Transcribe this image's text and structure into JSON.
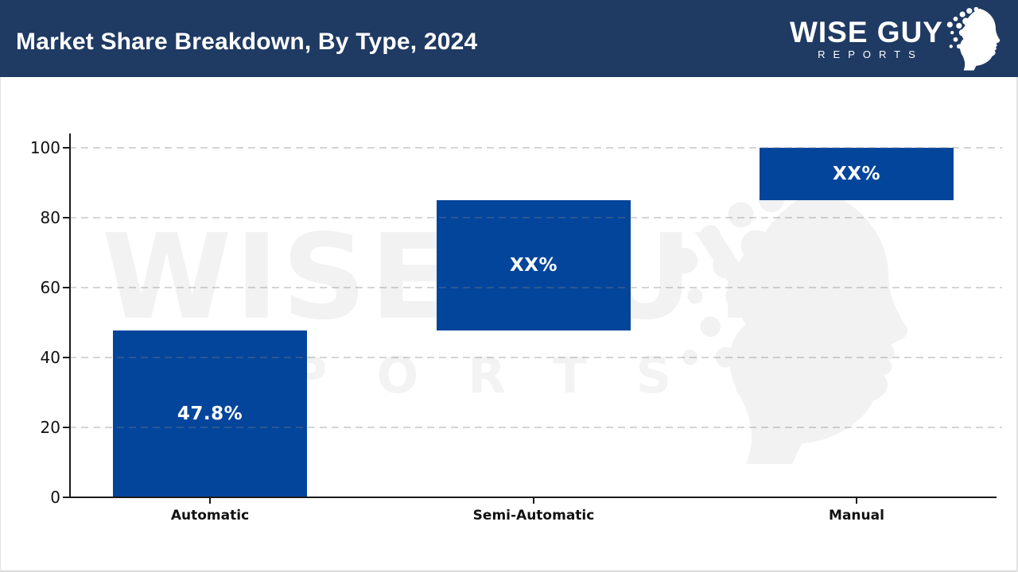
{
  "header": {
    "title": "Market Share Breakdown, By Type, 2024",
    "background_color": "#1f3a63",
    "logo": {
      "primary": "WISE GUY",
      "secondary": "REPORTS"
    }
  },
  "watermark": {
    "line1": "WISE GUY",
    "line2": "REPORTS"
  },
  "chart_data": {
    "type": "bar",
    "subtype": "floating-waterfall",
    "title": "Market Share Breakdown, By Type, 2024",
    "categories": [
      "Automatic",
      "Semi-Automatic",
      "Manual"
    ],
    "bars": [
      {
        "category": "Automatic",
        "from": 0,
        "to": 47.8,
        "display_label": "47.8%"
      },
      {
        "category": "Semi-Automatic",
        "from": 47.8,
        "to": 85,
        "display_label": "XX%"
      },
      {
        "category": "Manual",
        "from": 85,
        "to": 100,
        "display_label": "XX%"
      }
    ],
    "bar_color": "#04459c",
    "bar_label_color": "#ffffff",
    "ylim": [
      0,
      100
    ],
    "yticks": [
      0,
      20,
      40,
      60,
      80,
      100
    ],
    "xlabel": "",
    "ylabel": "",
    "grid": "horizontal-dashed",
    "gridline_color": "#d9d9d9",
    "axis_color": "#1a1a1a",
    "legend": "none"
  }
}
